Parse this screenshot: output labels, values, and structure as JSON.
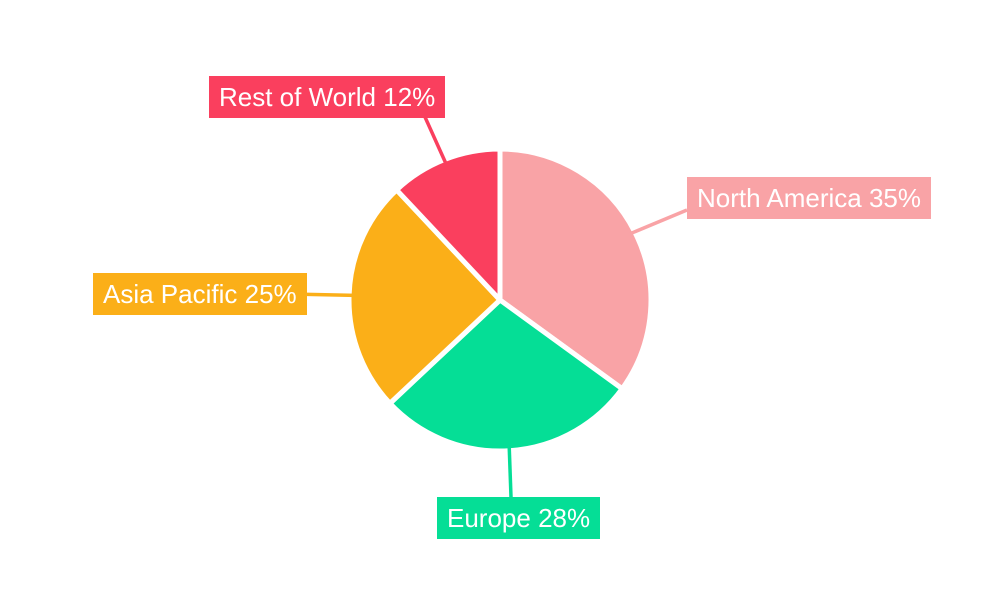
{
  "page": {
    "background_color": "#ffffff"
  },
  "chart_data": {
    "type": "pie",
    "categories": [
      "North America",
      "Europe",
      "Asia Pacific",
      "Rest of World"
    ],
    "values": [
      35,
      28,
      25,
      12
    ],
    "value_unit": "percent",
    "display_labels": [
      "North America 35%",
      "Europe 28%",
      "Asia Pacific 25%",
      "Rest of World 12%"
    ],
    "colors": [
      "#F9A3A6",
      "#05DE96",
      "#FBAF18",
      "#FA3F5E"
    ],
    "slice_divider_color": "#ffffff",
    "start_angle": "12-oclock",
    "direction": "clockwise",
    "legend": "none",
    "label_style": "callout-boxes-with-leader-lines",
    "label_text_color": "#ffffff"
  }
}
